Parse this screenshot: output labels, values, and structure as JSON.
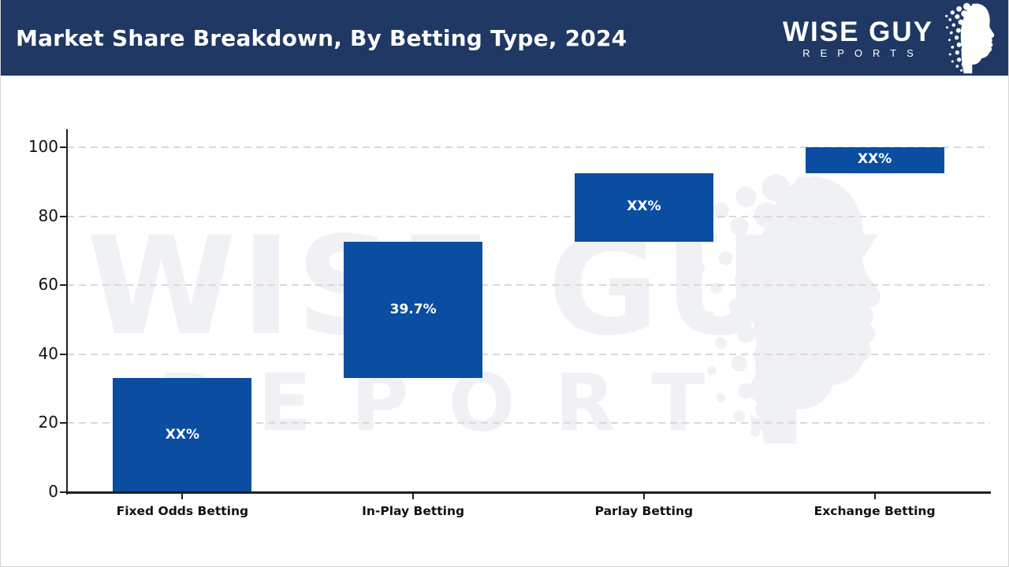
{
  "header": {
    "title": "Market Share Breakdown, By Betting Type, 2024",
    "logo": {
      "name_top": "WISE GUY",
      "name_bottom": "REPORTS"
    }
  },
  "watermark": {
    "line1": "WISE GUY",
    "line2": "REPORTS"
  },
  "colors": {
    "header_bg": "#1f3864",
    "bar_fill": "#0b4da1",
    "bar_label": "#ffffff",
    "axis": "#1f1f1f",
    "tick_label": "#111111",
    "category_label": "#111111",
    "gridline": "#d9d9d9",
    "watermark": "#f0f1f4",
    "logo_color": "#ffffff",
    "page_bg": "#ffffff"
  },
  "chart_data": {
    "type": "bar",
    "subtype": "waterfall",
    "title": "Market Share Breakdown, By Betting Type, 2024",
    "categories": [
      "Fixed Odds Betting",
      "In-Play Betting",
      "Parlay Betting",
      "Exchange Betting"
    ],
    "segments": [
      {
        "category": "Fixed Odds Betting",
        "start": 0,
        "end": 33,
        "label": "XX%"
      },
      {
        "category": "In-Play Betting",
        "start": 33,
        "end": 72.7,
        "label": "39.7%"
      },
      {
        "category": "Parlay Betting",
        "start": 72.7,
        "end": 92.5,
        "label": "XX%"
      },
      {
        "category": "Exchange Betting",
        "start": 92.5,
        "end": 100,
        "label": "XX%"
      }
    ],
    "yticks": [
      0,
      20,
      40,
      60,
      80,
      100
    ],
    "ylim": [
      0,
      105
    ],
    "xlabel": "",
    "ylabel": "",
    "grid": "horizontal-dashed",
    "legend": "none"
  }
}
